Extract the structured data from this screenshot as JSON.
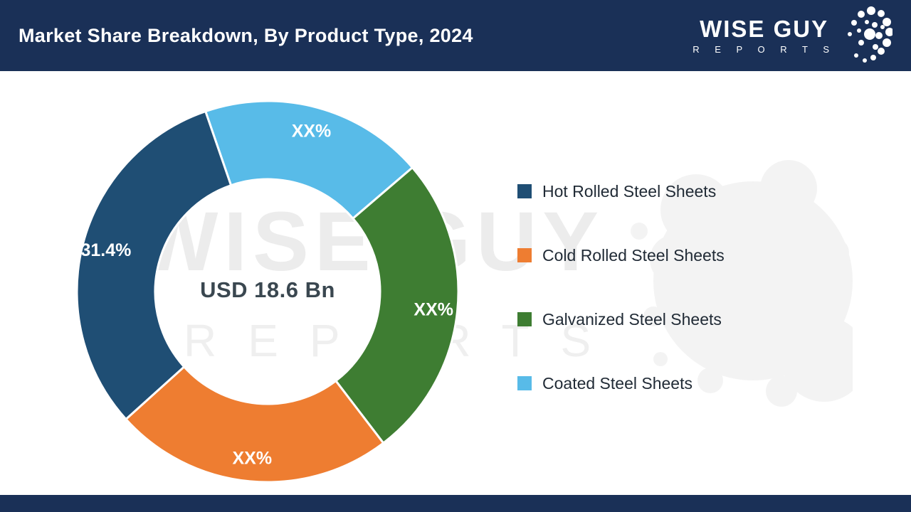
{
  "header": {
    "title": "Market Share Breakdown, By Product Type, 2024"
  },
  "logo": {
    "name_line": "WISE GUY",
    "tagline": "R E P O R T S"
  },
  "watermark": {
    "line1": "WISE GUY",
    "line2": "REPORTS"
  },
  "chart_data": {
    "type": "pie",
    "donut": true,
    "title": "Market Share Breakdown, By Product Type, 2024",
    "center_label": "USD 18.6 Bn",
    "legend_position": "right",
    "start_angle_deg": -19,
    "draw_order": [
      3,
      2,
      1,
      0
    ],
    "series": [
      {
        "name": "Hot Rolled Steel Sheets",
        "value": 31.4,
        "label": "31.4%",
        "color": "#1f4e74"
      },
      {
        "name": "Cold Rolled Steel Sheets",
        "value": 23.7,
        "label": "XX%",
        "color": "#ee7d31"
      },
      {
        "name": "Galvanized Steel Sheets",
        "value": 25.9,
        "label": "XX%",
        "color": "#3e7d32"
      },
      {
        "name": "Coated Steel Sheets",
        "value": 19.0,
        "label": "XX%",
        "color": "#58bbe8"
      }
    ]
  },
  "colors": {
    "header_bg": "#1a3057",
    "footer_bg": "#1a3057",
    "center_text": "#3a4750",
    "legend_text": "#212b36",
    "watermark": "#ececec"
  }
}
